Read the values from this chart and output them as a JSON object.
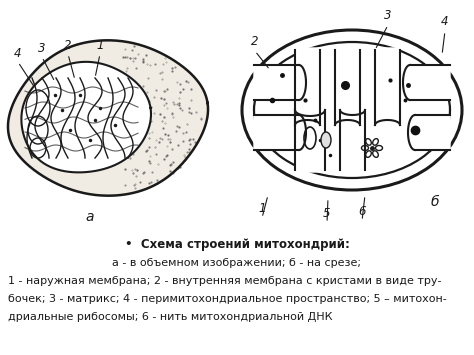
{
  "title_bullet": "•",
  "title_bold": "Схема строений митохондрий:",
  "line1": "а - в объемном изображении; б - на срезе;",
  "line2": "1 - наружная мембрана; 2 - внутренняя мембрана с кристами в виде тру-",
  "line3": "бочек; 3 - матрикс; 4 - перимитохондриальное пространство; 5 – митохон-",
  "line4": "дриальные рибосомы; 6 - нить митохондриальной ДНК",
  "bg_color": "#ffffff",
  "text_color": "#1a1a1a",
  "font_size_title": 8.5,
  "font_size_body": 8.0,
  "label_a": "а",
  "label_b": "б",
  "fig_width": 4.74,
  "fig_height": 3.55,
  "dpi": 100
}
